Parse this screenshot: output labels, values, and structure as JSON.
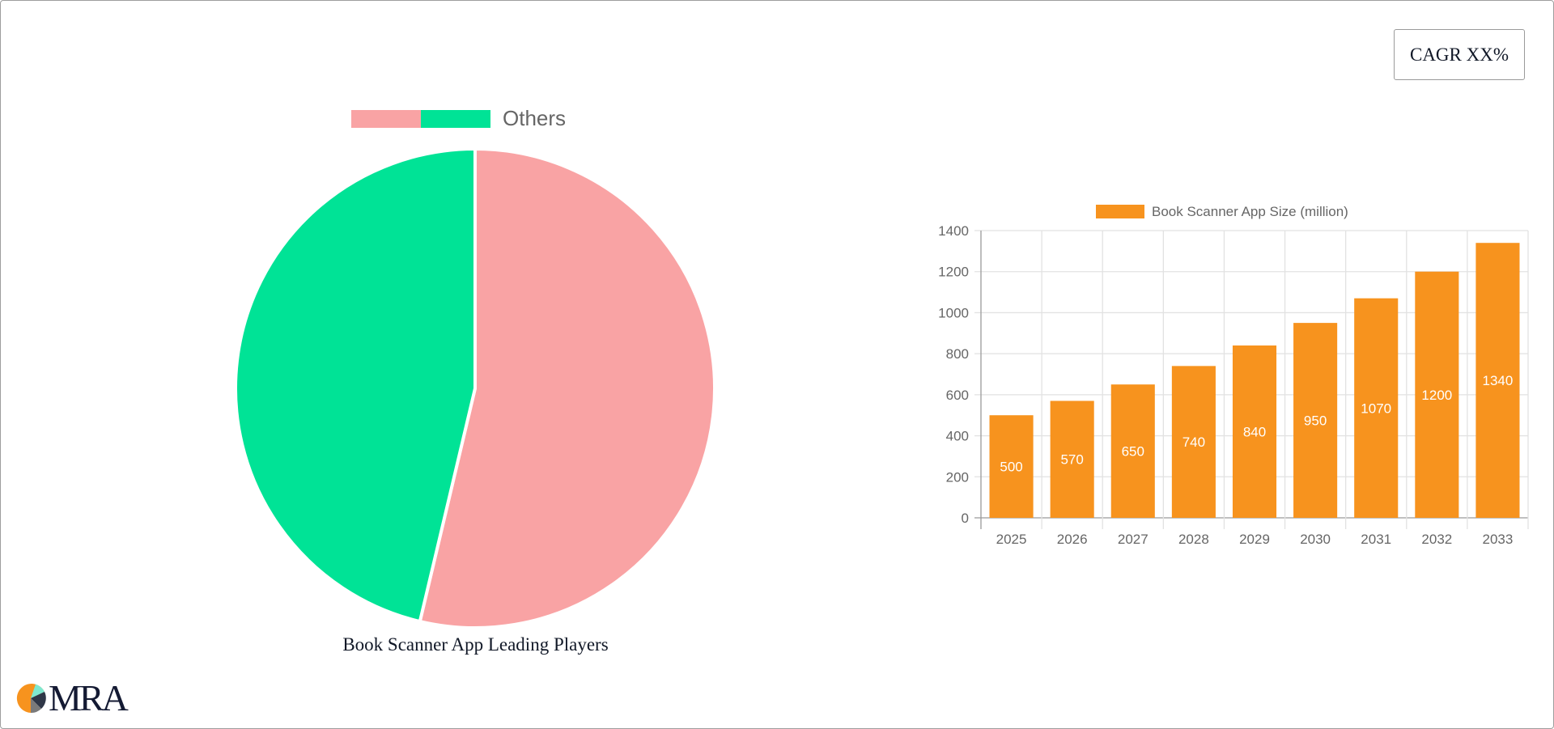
{
  "cagr_badge": {
    "label": "CAGR XX%"
  },
  "pie_chart": {
    "title": "Book Scanner App Leading Players",
    "legend": [
      {
        "label": "",
        "color": "#f9a3a4"
      },
      {
        "label": "Others",
        "color": "#00e396"
      }
    ]
  },
  "bar_chart": {
    "legend_label": "Book Scanner App Size (million)",
    "bar_color": "#f7931e"
  },
  "logo": {
    "text": "MRA"
  },
  "chart_data": [
    {
      "type": "pie",
      "title": "Book Scanner App Leading Players",
      "categories": [
        "",
        "Others"
      ],
      "values": [
        53.7,
        46.3
      ],
      "colors": [
        "#f9a3a4",
        "#00e396"
      ],
      "legend_position": "top"
    },
    {
      "type": "bar",
      "title": "",
      "legend": [
        "Book Scanner App Size (million)"
      ],
      "categories": [
        "2025",
        "2026",
        "2027",
        "2028",
        "2029",
        "2030",
        "2031",
        "2032",
        "2033"
      ],
      "values": [
        500,
        570,
        650,
        740,
        840,
        950,
        1070,
        1200,
        1340
      ],
      "xlabel": "",
      "ylabel": "",
      "ylim": [
        0,
        1400
      ],
      "yticks": [
        0,
        200,
        400,
        600,
        800,
        1000,
        1200,
        1400
      ],
      "grid": true,
      "data_labels": true,
      "legend_position": "top"
    }
  ]
}
